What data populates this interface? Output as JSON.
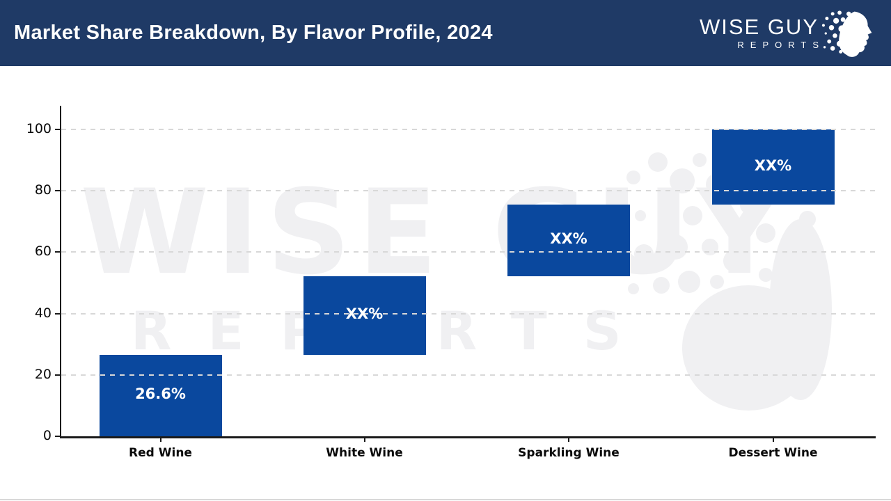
{
  "header": {
    "title": "Market Share Breakdown, By Flavor Profile, 2024"
  },
  "logo": {
    "line1": "WISE GUY",
    "line2": "REPORTS"
  },
  "watermark": {
    "line1": "WISE GUY",
    "line2": "REPORTS"
  },
  "colors": {
    "header_bg": "#1f3a66",
    "bar": "#0a489e",
    "grid": "#d8d8d8",
    "watermark": "#f0f0f2",
    "axis": "#1a1a1a",
    "bar_label": "#ffffff"
  },
  "chart_data": {
    "type": "bar",
    "subtype": "waterfall",
    "title": "Market Share Breakdown, By Flavor Profile, 2024",
    "categories": [
      "Red Wine",
      "White Wine",
      "Sparkling Wine",
      "Dessert Wine"
    ],
    "segments": [
      {
        "category": "Red Wine",
        "start": 0,
        "end": 26.6,
        "label": "26.6%"
      },
      {
        "category": "White Wine",
        "start": 26.6,
        "end": 52.2,
        "label": "XX%"
      },
      {
        "category": "Sparkling Wine",
        "start": 52.2,
        "end": 75.5,
        "label": "XX%"
      },
      {
        "category": "Dessert Wine",
        "start": 75.5,
        "end": 100,
        "label": "XX%"
      }
    ],
    "yticks": [
      0,
      20,
      40,
      60,
      80,
      100
    ],
    "ylim": [
      0,
      100
    ],
    "xlabel": "",
    "ylabel": "",
    "grid": "horizontal-dashed-over-bars",
    "legend": "none",
    "bar_color": "#0a489e",
    "label_color": "#ffffff"
  }
}
